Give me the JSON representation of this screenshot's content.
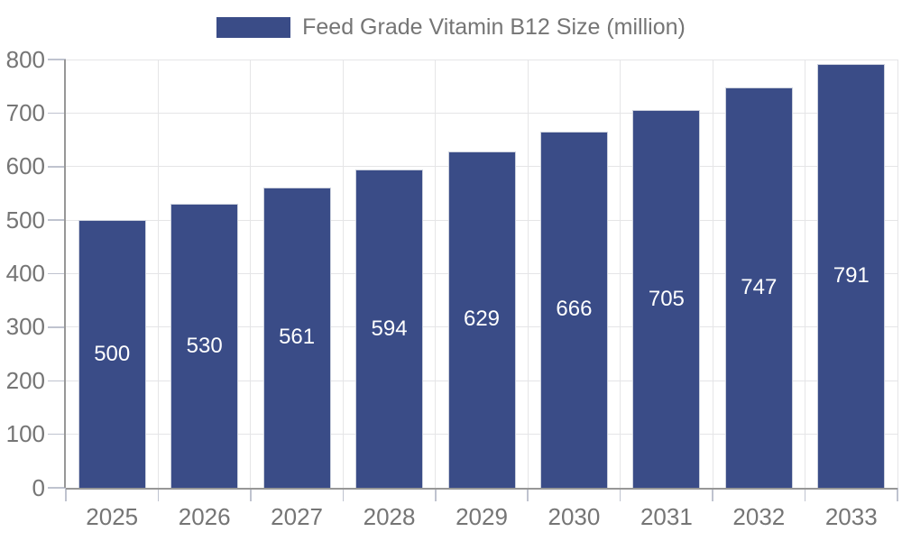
{
  "chart_data": {
    "type": "bar",
    "title": "Feed Grade Vitamin B12 Size (million)",
    "legend_label": "Feed Grade Vitamin B12 Size (million)",
    "legend_position": "top-center",
    "categories": [
      "2025",
      "2026",
      "2027",
      "2028",
      "2029",
      "2030",
      "2031",
      "2032",
      "2033"
    ],
    "values": [
      500,
      530,
      561,
      594,
      629,
      666,
      705,
      747,
      791
    ],
    "value_labels": [
      "500",
      "530",
      "561",
      "594",
      "629",
      "666",
      "705",
      "747",
      "791"
    ],
    "xlabel": "",
    "ylabel": "",
    "ylim": [
      0,
      800
    ],
    "yticks": [
      0,
      100,
      200,
      300,
      400,
      500,
      600,
      700,
      800
    ],
    "grid": true,
    "colors": {
      "bar": "#3a4c87",
      "bar_border": "#ccd1dd",
      "value_label": "#ffffff",
      "axis_text": "#757575",
      "axis_line": "#979797",
      "gridline": "#e5e5e7",
      "tick": "#bfc3cf",
      "background": "#ffffff"
    }
  }
}
